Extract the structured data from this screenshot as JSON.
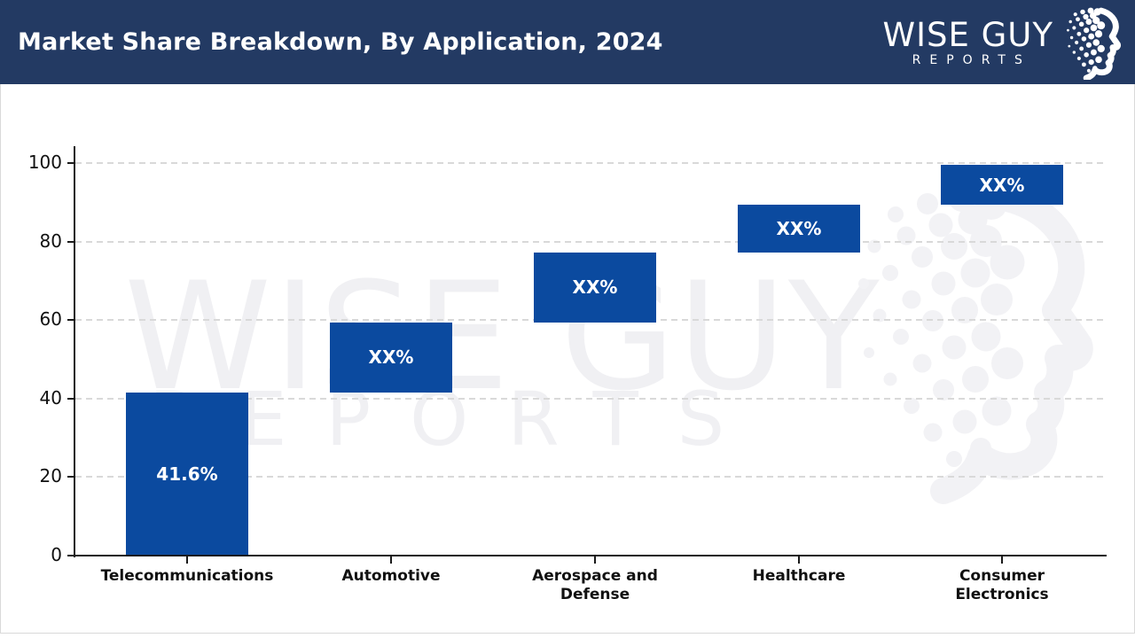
{
  "header": {
    "title": "Market Share Breakdown, By Application, 2024",
    "logo": {
      "line1": "WISE GUY",
      "line2": "REPORTS"
    }
  },
  "watermark": {
    "line1": "WISE GUY",
    "line2": "REPORTS"
  },
  "colors": {
    "header_bg": "#233a63",
    "bar": "#0b4a9f",
    "bar_label": "#ffffff",
    "grid": "#d9d9d9",
    "axis": "#1a1a1a",
    "tick_text": "#111111",
    "watermark": "#f0f0f3"
  },
  "chart_data": {
    "type": "bar",
    "subtype": "floating-waterfall",
    "title": "Market Share Breakdown, By Application, 2024",
    "categories": [
      "Telecommunications",
      "Automotive",
      "Aerospace and Defense",
      "Healthcare",
      "Consumer Electronics"
    ],
    "category_label_lines": [
      [
        "Telecommunications"
      ],
      [
        "Automotive"
      ],
      [
        "Aerospace and",
        "Defense"
      ],
      [
        "Healthcare"
      ],
      [
        "Consumer",
        "Electronics"
      ]
    ],
    "segments": [
      {
        "category": "Telecommunications",
        "start": 0,
        "end": 41.6,
        "label": "41.6%"
      },
      {
        "category": "Automotive",
        "start": 41.6,
        "end": 59.4,
        "label": "XX%"
      },
      {
        "category": "Aerospace and Defense",
        "start": 59.4,
        "end": 77.2,
        "label": "XX%"
      },
      {
        "category": "Healthcare",
        "start": 77.2,
        "end": 89.3,
        "label": "XX%"
      },
      {
        "category": "Consumer Electronics",
        "start": 89.3,
        "end": 99.5,
        "label": "XX%"
      }
    ],
    "yticks": [
      0,
      20,
      40,
      60,
      80,
      100
    ],
    "ylim": [
      0,
      104
    ],
    "xlabel": "",
    "ylabel": "",
    "grid": "horizontal-dashed",
    "legend": "none"
  }
}
